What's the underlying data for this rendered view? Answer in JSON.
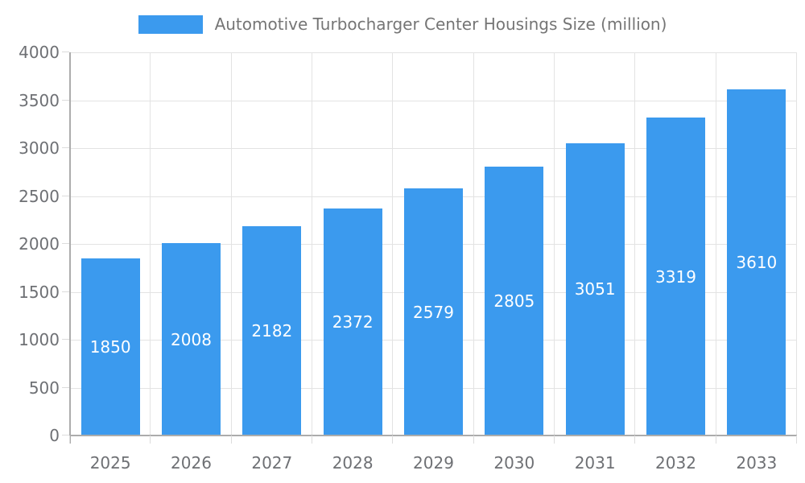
{
  "chart_data": {
    "type": "bar",
    "title": "Automotive Turbocharger Center Housings Size (million)",
    "categories": [
      "2025",
      "2026",
      "2027",
      "2028",
      "2029",
      "2030",
      "2031",
      "2032",
      "2033"
    ],
    "series": [
      {
        "name": "Automotive Turbocharger Center Housings Size (million)",
        "values": [
          1850,
          2008,
          2182,
          2372,
          2579,
          2805,
          3051,
          3319,
          3610
        ]
      }
    ],
    "xlabel": "",
    "ylabel": "",
    "ylim": [
      0,
      4000
    ],
    "ytick_step": 500,
    "grid": true,
    "legend_position": "top",
    "value_labels": "inside-center",
    "colors": {
      "bar": "#3B9AEE",
      "grid": "#E3E3E3",
      "axis_line": "#ACACAC",
      "tick": "#DCDCDC",
      "axis_text": "#6E7074",
      "legend_text": "#757575",
      "value_label_text": "#FFFFFF",
      "background": "#FFFFFF"
    }
  }
}
